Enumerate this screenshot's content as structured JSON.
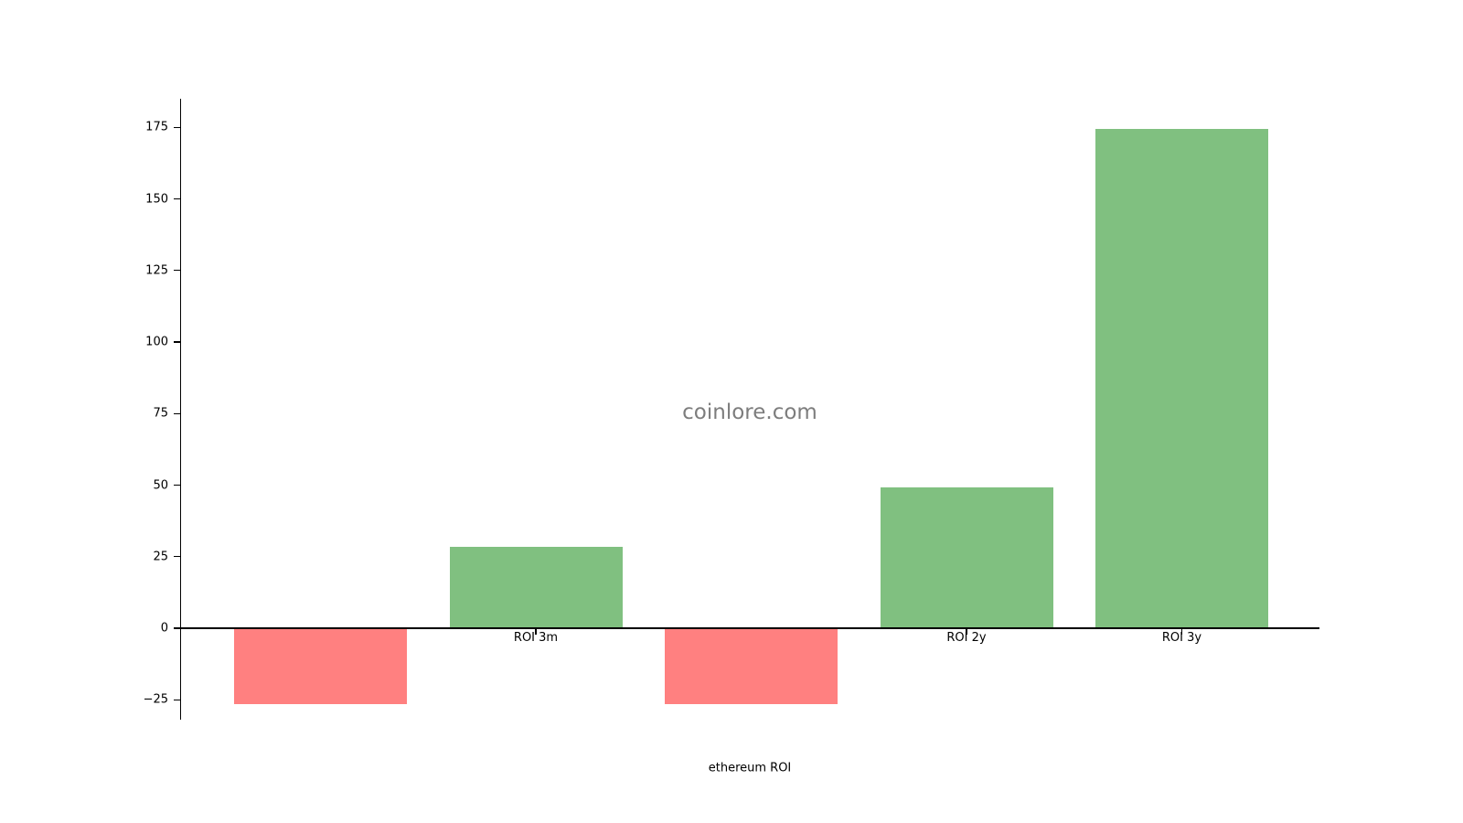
{
  "page": {
    "background_color": "#ffffff",
    "axis_color": "#000000",
    "text_color": "#000000"
  },
  "watermark": {
    "text": "coinlore.com",
    "color": "#7d7d7d"
  },
  "chart_data": {
    "type": "bar",
    "title": "",
    "xlabel": "ethereum ROI",
    "ylabel": "",
    "categories": [
      "",
      "ROI 3m",
      "",
      "ROI 2y",
      "ROI 3y"
    ],
    "values": [
      -26.5,
      28.4,
      -26.5,
      49.2,
      174.4
    ],
    "bar_colors": [
      "#ff8080",
      "#80c080",
      "#ff8080",
      "#80c080",
      "#80c080"
    ],
    "positive_color": "#80c080",
    "negative_color": "#ff8080",
    "y_ticks": [
      -25,
      0,
      25,
      50,
      75,
      100,
      125,
      150,
      175
    ],
    "ylim": [
      -32,
      185
    ],
    "grid": false,
    "legend": null
  }
}
